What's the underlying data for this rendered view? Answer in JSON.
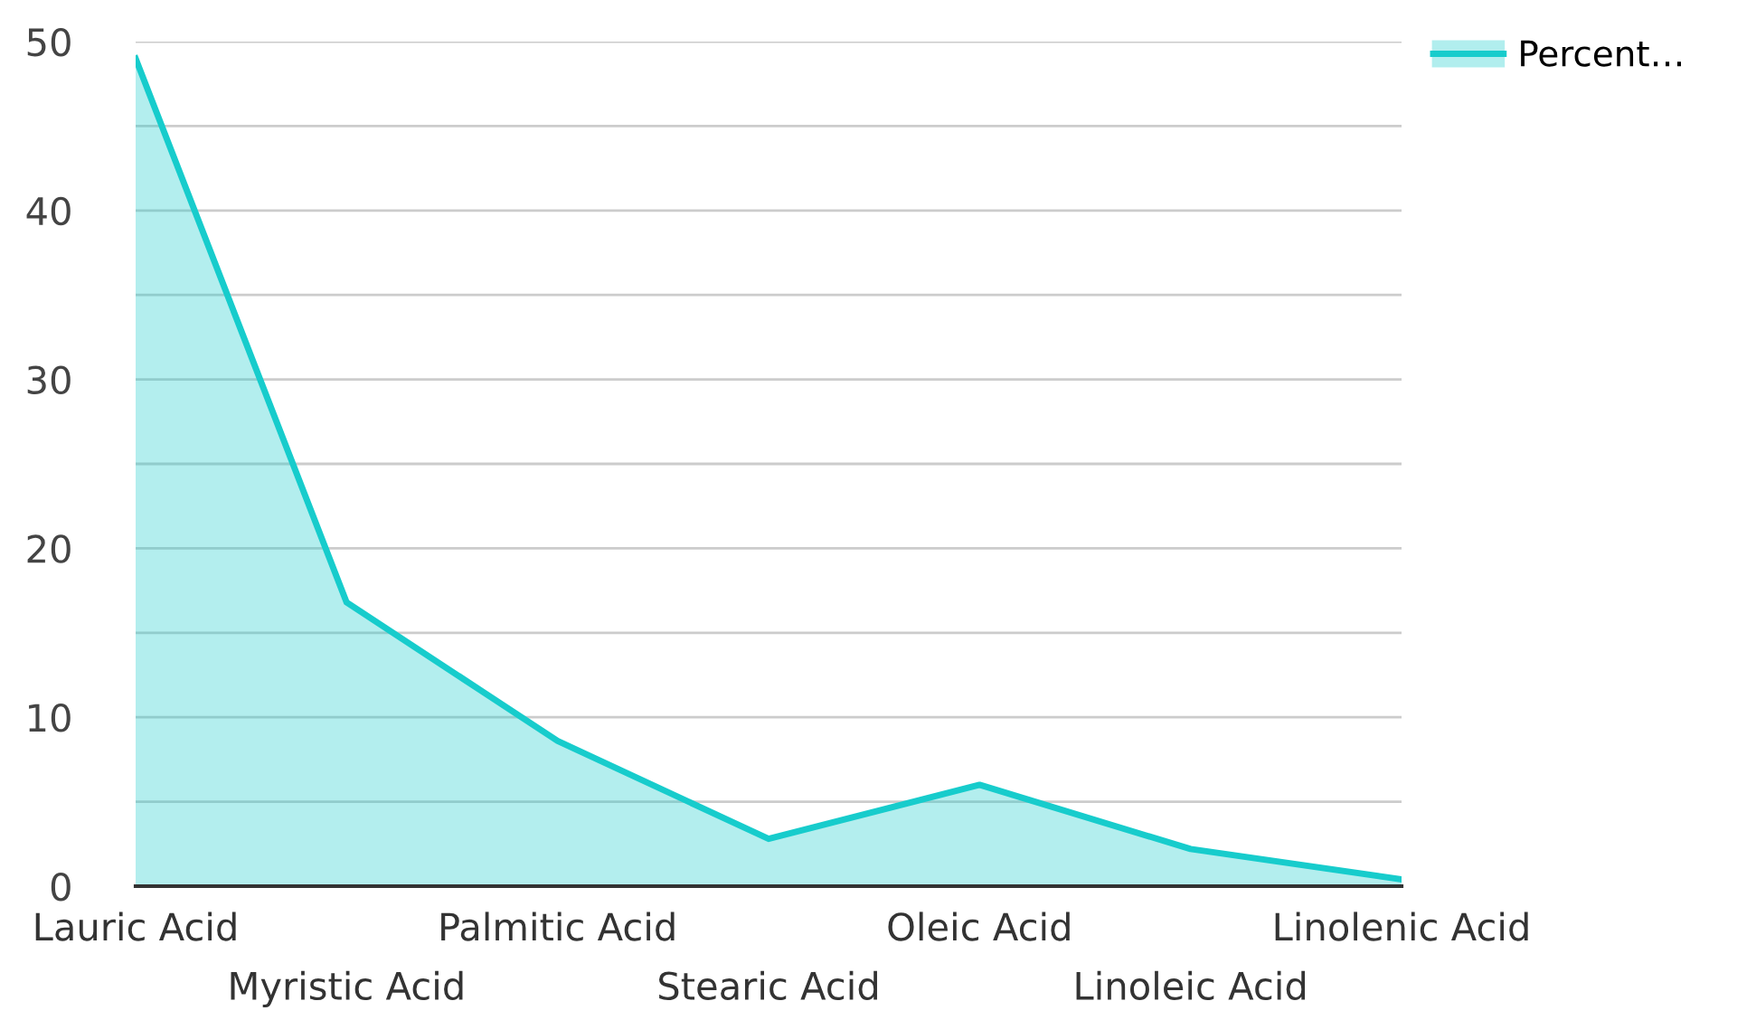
{
  "chart_data": {
    "type": "area",
    "categories": [
      "Lauric Acid",
      "Myristic Acid",
      "Palmitic Acid",
      "Stearic Acid",
      "Oleic Acid",
      "Linoleic Acid",
      "Linolenic Acid"
    ],
    "series": [
      {
        "name": "Percent…",
        "color": "#17cccc",
        "values": [
          49.0,
          16.8,
          8.6,
          2.8,
          6.0,
          2.2,
          0.4
        ]
      }
    ],
    "ylim": [
      0,
      50
    ],
    "yticks": [
      0,
      {
        "value": 5,
        "label": null
      },
      10,
      {
        "value": 15,
        "label": null
      },
      20,
      {
        "value": 25,
        "label": null
      },
      30,
      {
        "value": 35,
        "label": null
      },
      40,
      {
        "value": 45,
        "label": null
      },
      50
    ],
    "grid": "y",
    "legend": "top right"
  }
}
